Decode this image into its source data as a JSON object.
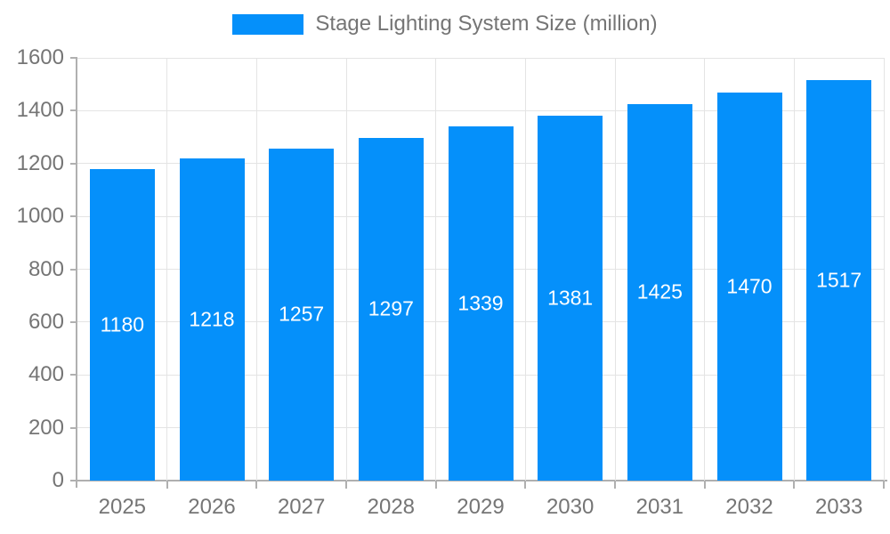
{
  "legend": {
    "label": "Stage Lighting System Size (million)",
    "swatch_icon": "series-color-swatch"
  },
  "colors": {
    "bar": "#0590fa",
    "bar_label": "#ffffff",
    "text": "#757575",
    "grid": "#e4e4e4",
    "axis": "#b0b0b0",
    "background": "#ffffff"
  },
  "chart_data": {
    "type": "bar",
    "title": "Stage Lighting System Size (million)",
    "categories": [
      "2025",
      "2026",
      "2027",
      "2028",
      "2029",
      "2030",
      "2031",
      "2032",
      "2033"
    ],
    "values": [
      1180,
      1218,
      1257,
      1297,
      1339,
      1381,
      1425,
      1470,
      1517
    ],
    "series_name": "Stage Lighting System Size (million)",
    "xlabel": "",
    "ylabel": "",
    "ylim": [
      0,
      1600
    ],
    "yticks": [
      0,
      200,
      400,
      600,
      800,
      1000,
      1200,
      1400,
      1600
    ],
    "grid": true,
    "data_labels": "inside-center",
    "legend_position": "top-center"
  }
}
